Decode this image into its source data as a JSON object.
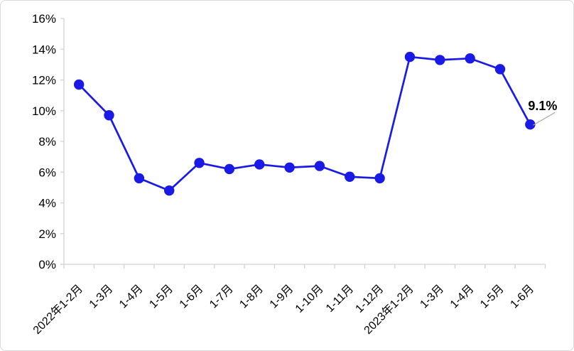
{
  "frame": {
    "background_color": "#ffffff",
    "border_color": "#d9d9d9"
  },
  "chart_data": {
    "type": "line",
    "title": "",
    "xlabel": "",
    "ylabel": "",
    "categories": [
      "2022年1-2月",
      "1-3月",
      "1-4月",
      "1-5月",
      "1-6月",
      "1-7月",
      "1-8月",
      "1-9月",
      "1-10月",
      "1-11月",
      "1-12月",
      "2023年1-2月",
      "1-3月",
      "1-4月",
      "1-5月",
      "1-6月"
    ],
    "series": [
      {
        "values": [
          11.7,
          9.7,
          5.6,
          4.8,
          6.6,
          6.2,
          6.5,
          6.3,
          6.4,
          5.7,
          5.6,
          13.5,
          13.3,
          13.4,
          12.7,
          9.1
        ]
      }
    ],
    "ylim": [
      0,
      16
    ],
    "ytick_step": 2,
    "ytick_labels": [
      "0%",
      "2%",
      "4%",
      "6%",
      "8%",
      "10%",
      "12%",
      "14%",
      "16%"
    ],
    "x_label_rotation_deg": 45,
    "grid": false,
    "legend": "none",
    "annotation": {
      "text": "9.1%",
      "point_index": 15
    },
    "colors": {
      "line": "#1a1ae6",
      "marker": "#1a1ae6",
      "axis": "#d2d2d2",
      "tick": "#d2d2d2",
      "text": "#000000",
      "annotation_text": "#000000",
      "leader_line": "#a6a6a6"
    }
  }
}
